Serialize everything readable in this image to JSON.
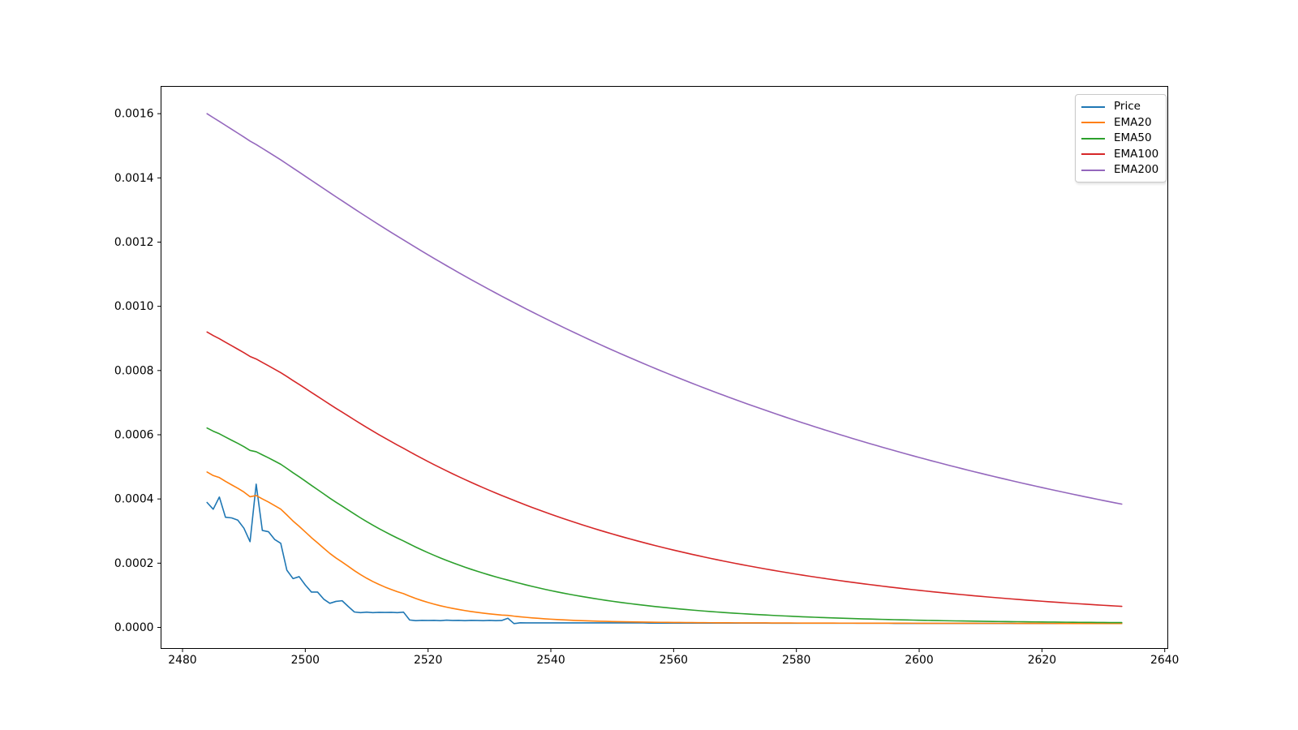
{
  "figure": {
    "background": "#ffffff",
    "axis_color": "#000000",
    "tick_label_color": "#000000"
  },
  "chart_data": {
    "type": "line",
    "title": "",
    "xlabel": "",
    "ylabel": "",
    "grid": false,
    "legend_position": "upper-right",
    "xlim": [
      2476.5,
      2640.5
    ],
    "ylim": [
      -6.57e-05,
      0.001685
    ],
    "xticks": [
      2480,
      2500,
      2520,
      2540,
      2560,
      2580,
      2600,
      2620,
      2640
    ],
    "ytick_values": [
      0.0,
      0.0002,
      0.0004,
      0.0006,
      0.0008,
      0.001,
      0.0012,
      0.0014,
      0.0016
    ],
    "ytick_labels": [
      "0.0000",
      "0.0002",
      "0.0004",
      "0.0006",
      "0.0008",
      "0.0010",
      "0.0012",
      "0.0014",
      "0.0016"
    ],
    "x_start": 2484,
    "x_step": 1,
    "n_points": 150,
    "series": [
      {
        "label": "Price",
        "color": "#1f77b4",
        "kind": "raw",
        "values": [
          0.000389,
          0.000368,
          0.000406,
          0.000343,
          0.000341,
          0.000334,
          0.000309,
          0.000267,
          0.000446,
          0.000302,
          0.000298,
          0.000274,
          0.000262,
          0.000178,
          0.000152,
          0.000158,
          0.000132,
          0.00011,
          0.00011,
          8.8e-05,
          7.5e-05,
          8.1e-05,
          8.3e-05,
          6.5e-05,
          4.8e-05,
          4.6e-05,
          4.75e-05,
          4.6e-05,
          4.7e-05,
          4.65e-05,
          4.7e-05,
          4.6e-05,
          4.75e-05,
          2.3e-05,
          2.1e-05,
          2.2e-05,
          2.15e-05,
          2.2e-05,
          2.1e-05,
          2.25e-05,
          2.15e-05,
          2.2e-05,
          2.1e-05,
          2.2e-05,
          2.15e-05,
          2.1e-05,
          2.2e-05,
          2.1e-05,
          2.15e-05,
          2.85e-05,
          1.18e-05,
          1.44e-05,
          1.4e-05,
          1.4e-05,
          1.4e-05,
          1.4e-05,
          1.4e-05,
          1.4e-05,
          1.4e-05,
          1.4e-05,
          1.4e-05,
          1.4e-05,
          1.4e-05,
          1.4e-05,
          1.4e-05,
          1.4e-05,
          1.4e-05,
          1.4e-05,
          1.4e-05,
          1.4e-05,
          1.4e-05,
          1.4e-05,
          1.35e-05,
          1.35e-05,
          1.35e-05,
          1.35e-05,
          1.35e-05,
          1.35e-05,
          1.35e-05,
          1.35e-05,
          1.35e-05,
          1.35e-05,
          1.35e-05,
          1.35e-05,
          1.35e-05,
          1.35e-05,
          1.35e-05,
          1.35e-05,
          1.35e-05,
          1.35e-05,
          1.35e-05,
          1.35e-05,
          1.3e-05,
          1.3e-05,
          1.3e-05,
          1.3e-05,
          1.3e-05,
          1.3e-05,
          1.3e-05,
          1.3e-05,
          1.3e-05,
          1.3e-05,
          1.3e-05,
          1.3e-05,
          1.3e-05,
          1.3e-05,
          1.3e-05,
          1.3e-05,
          1.3e-05,
          1.3e-05,
          1.3e-05,
          1.3e-05,
          1.25e-05,
          1.25e-05,
          1.25e-05,
          1.25e-05,
          1.25e-05,
          1.25e-05,
          1.25e-05,
          1.25e-05,
          1.25e-05,
          1.25e-05,
          1.25e-05,
          1.25e-05,
          1.25e-05,
          1.25e-05,
          1.25e-05,
          1.25e-05,
          1.25e-05,
          1.25e-05,
          1.25e-05,
          1.25e-05,
          1.2e-05,
          1.2e-05,
          1.2e-05,
          1.2e-05,
          1.2e-05,
          1.2e-05,
          1.2e-05,
          1.2e-05,
          1.2e-05,
          1.2e-05,
          1.2e-05,
          1.2e-05,
          1.2e-05,
          1.2e-05,
          1.2e-05,
          1.2e-05,
          1.2e-05,
          1.2e-05
        ]
      },
      {
        "label": "EMA20",
        "color": "#ff7f0e",
        "kind": "ema",
        "period": 20,
        "seed": 0.000484
      },
      {
        "label": "EMA50",
        "color": "#2ca02c",
        "kind": "ema",
        "period": 50,
        "seed": 0.000621
      },
      {
        "label": "EMA100",
        "color": "#d62728",
        "kind": "ema",
        "period": 100,
        "seed": 0.00092
      },
      {
        "label": "EMA200",
        "color": "#9467bd",
        "kind": "ema",
        "period": 200,
        "seed": 0.0016
      }
    ]
  }
}
